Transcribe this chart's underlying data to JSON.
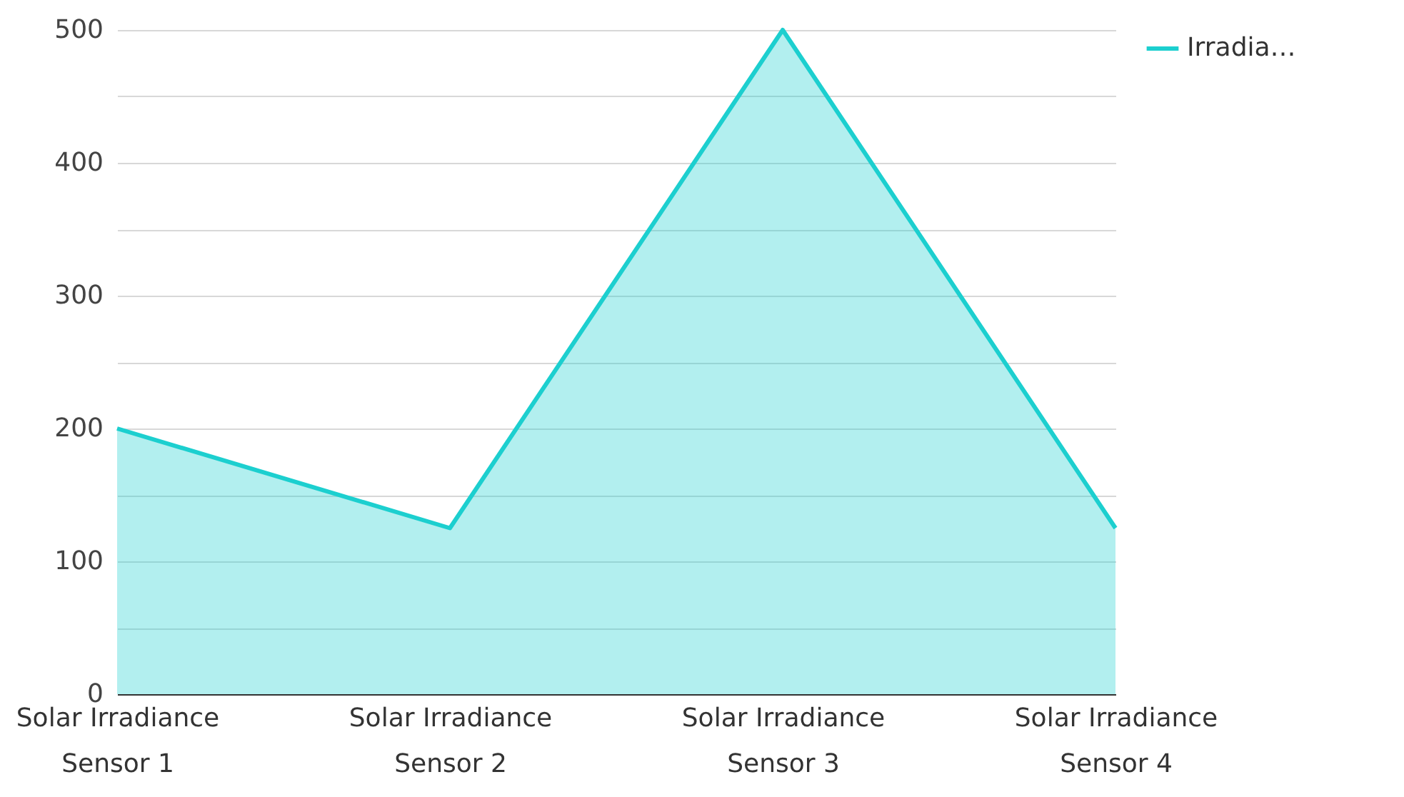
{
  "chart_data": {
    "type": "area",
    "categories": [
      "Solar Irradiance Sensor 1",
      "Solar Irradiance Sensor 2",
      "Solar Irradiance Sensor 3",
      "Solar Irradiance Sensor 4"
    ],
    "series": [
      {
        "name": "Irradia…",
        "color": "#1ccfcf",
        "values": [
          200,
          125,
          500,
          125
        ]
      }
    ],
    "ylim": [
      0,
      500
    ],
    "yticks": [
      0,
      {
        "value": 50,
        "label": null
      },
      100,
      {
        "value": 150,
        "label": null
      },
      200,
      {
        "value": 250,
        "label": null
      },
      300,
      {
        "value": 350,
        "label": null
      },
      400,
      {
        "value": 450,
        "label": null
      },
      500
    ],
    "grid": "y",
    "legend": "top right",
    "marker": "none"
  }
}
